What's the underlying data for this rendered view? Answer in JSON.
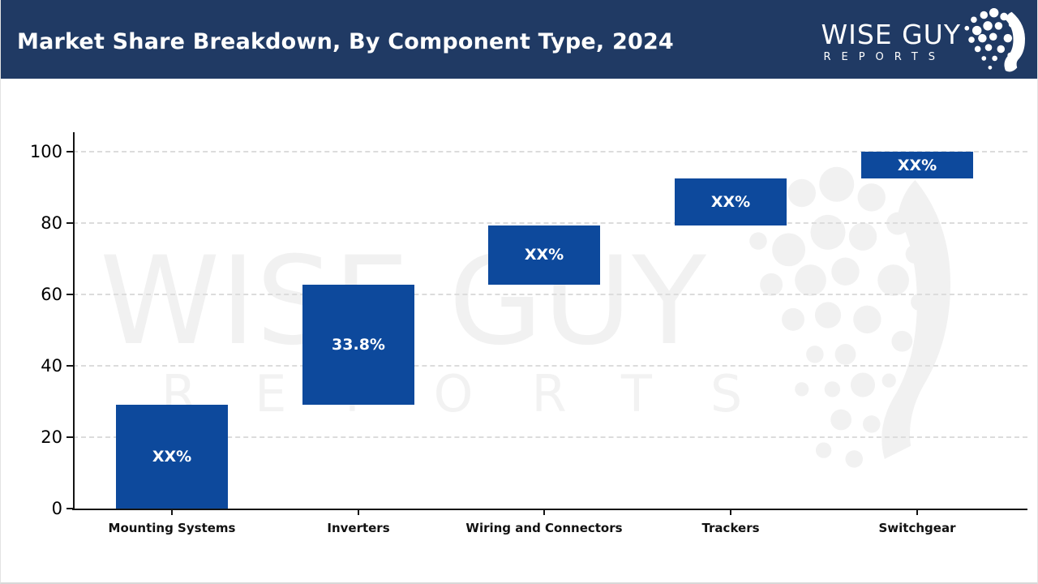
{
  "header": {
    "title": "Market Share Breakdown, By Component Type, 2024",
    "logo": {
      "line1": "WISE GUY",
      "line2": "REPORTS"
    }
  },
  "watermark": {
    "line1": "WISE GUY",
    "line2": "REPORTS"
  },
  "chart_data": {
    "type": "bar",
    "subtype": "waterfall",
    "title": "Market Share Breakdown, By Component Type, 2024",
    "categories": [
      "Mounting Systems",
      "Inverters",
      "Wiring and Connectors",
      "Trackers",
      "Switchgear"
    ],
    "segments": [
      {
        "label": "XX%",
        "value": 29.0,
        "start": 0,
        "end": 29.0
      },
      {
        "label": "33.8%",
        "value": 33.8,
        "start": 29.0,
        "end": 62.8
      },
      {
        "label": "XX%",
        "value": 16.5,
        "start": 62.8,
        "end": 79.3
      },
      {
        "label": "XX%",
        "value": 13.1,
        "start": 79.3,
        "end": 92.4
      },
      {
        "label": "XX%",
        "value": 7.6,
        "start": 92.4,
        "end": 100
      }
    ],
    "xlabel": "",
    "ylabel": "",
    "y_ticks": [
      0,
      20,
      40,
      60,
      80,
      100
    ],
    "ylim": [
      0,
      105
    ],
    "grid": "horizontal-dashed",
    "legend": "none",
    "bar_color": "#0d499c",
    "bar_label_color": "#ffffff"
  }
}
